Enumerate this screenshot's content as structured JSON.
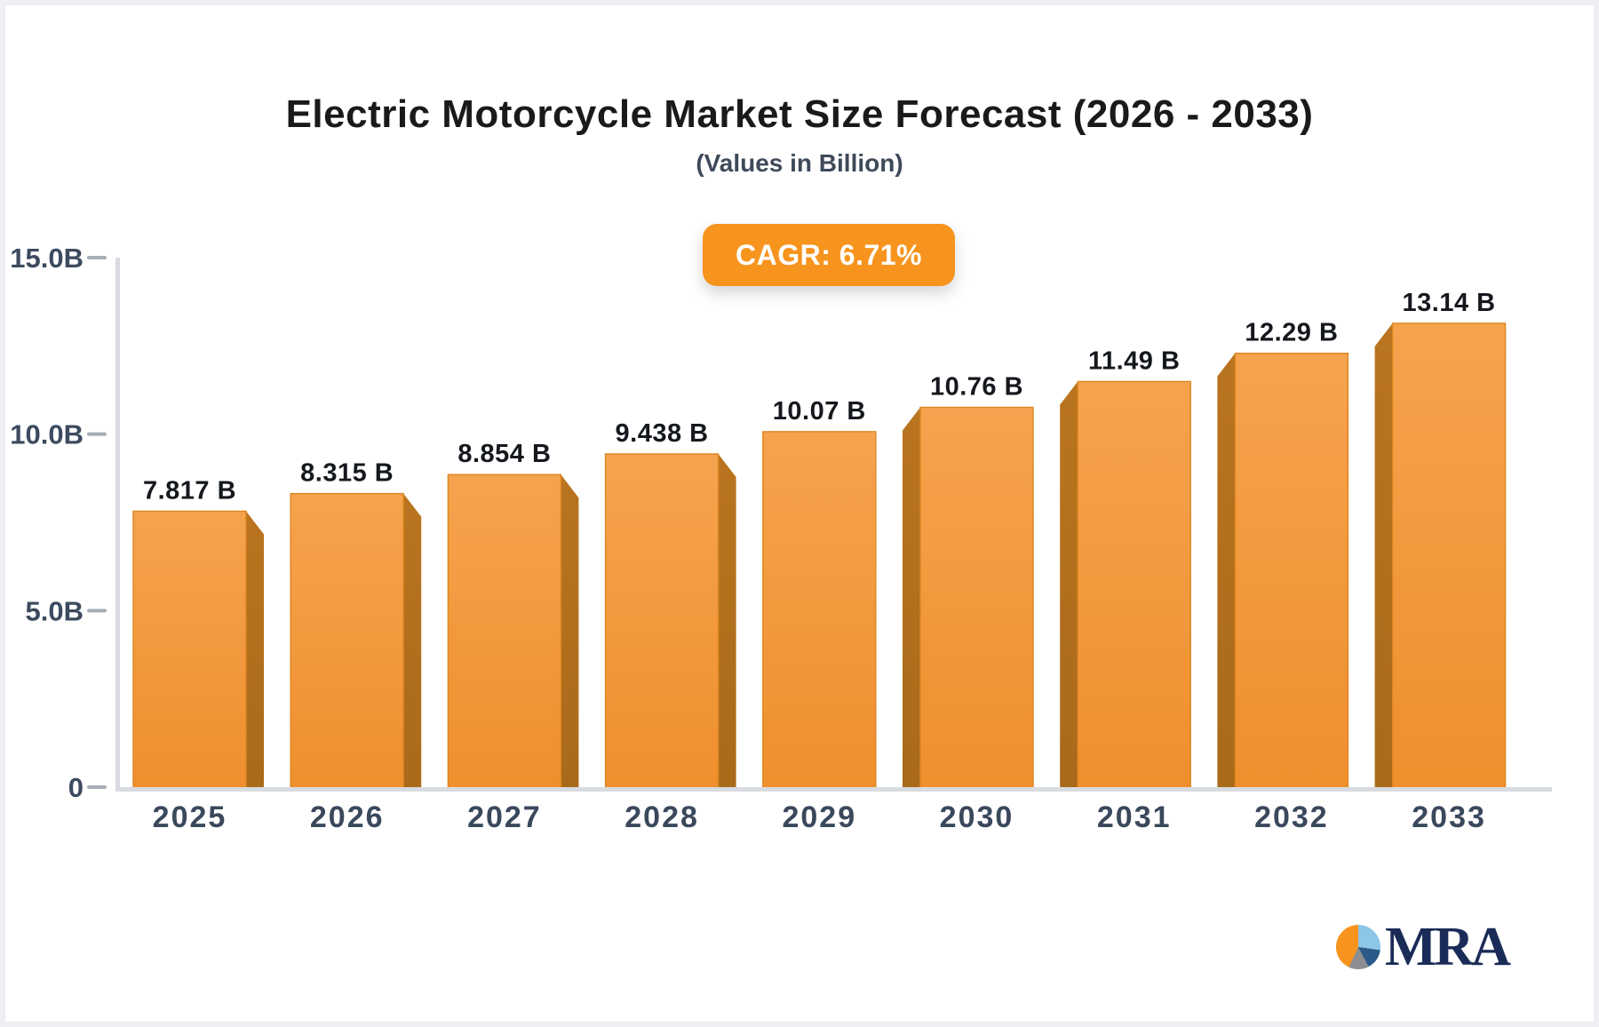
{
  "window": {
    "background": "#ffffff",
    "frame_color": "#eef0f3"
  },
  "header": {
    "title": "Electric Motorcycle Market Size Forecast (2026 - 2033)",
    "subtitle": "(Values in Billion)"
  },
  "cagr_badge": {
    "label": "CAGR: 6.71%",
    "background": "#F7941E",
    "text_color": "#FFFFFF"
  },
  "chart_data": {
    "type": "bar",
    "title": "Electric Motorcycle Market Size Forecast (2026 - 2033)",
    "subtitle": "(Values in Billion)",
    "unit": "Billion",
    "cagr": "6.71%",
    "categories": [
      "2025",
      "2026",
      "2027",
      "2028",
      "2029",
      "2030",
      "2031",
      "2032",
      "2033"
    ],
    "values": [
      7.817,
      8.315,
      8.854,
      9.438,
      10.07,
      10.76,
      11.49,
      12.29,
      13.14
    ],
    "value_labels": [
      "7.817 B",
      "8.315 B",
      "8.854 B",
      "9.438 B",
      "10.07 B",
      "10.76 B",
      "11.49 B",
      "12.29 B",
      "13.14 B"
    ],
    "xlabel": "",
    "ylabel": "",
    "ylim": [
      0,
      15
    ],
    "yticks": {
      "values": [
        0,
        5,
        10,
        15
      ],
      "labels": [
        "0",
        "5.0B",
        "10.0B",
        "15.0B"
      ]
    },
    "grid": false,
    "legend": false,
    "bar_face_color_top": "#F5A34E",
    "bar_face_color_bottom": "#EF8F2E",
    "bar_side_color_top": "#BA741F",
    "bar_side_color_bottom": "#A96A1A",
    "bar_border_color": "#DD861F",
    "axis_color": "#D8DBE0",
    "tick_color": "#A8AEB7",
    "tick_label_color": "#3D4B5F",
    "year_label_color": "#3A485C",
    "value_label_color": "#15181D"
  },
  "footer_logo": {
    "text": "MRA",
    "text_color": "#1B2B57",
    "pie_icon_colors": {
      "light_blue": "#8EC6E8",
      "navy": "#2B5A88",
      "gray": "#8E8D92",
      "orange": "#F7941D"
    }
  }
}
